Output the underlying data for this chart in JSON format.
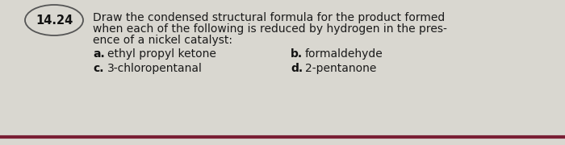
{
  "background_color": "#d9d7d0",
  "border_line_color": "#7a1f35",
  "number": "14.24",
  "main_text_line1": "Draw the condensed structural formula for the product formed",
  "main_text_line2": "when each of the following is reduced by hydrogen in the pres-",
  "main_text_line3": "ence of a nickel catalyst:",
  "item_a_label": "a.",
  "item_a_text": "ethyl propyl ketone",
  "item_b_label": "b.",
  "item_b_text": "formaldehyde",
  "item_c_label": "c.",
  "item_c_text": "3-chloropentanal",
  "item_d_label": "d.",
  "item_d_text": "2-pentanone",
  "font_size_number": 10.5,
  "font_size_body": 10.0,
  "font_size_items": 10.0,
  "text_color": "#1a1a1a",
  "bold_color": "#111111",
  "circle_color": "#555555"
}
